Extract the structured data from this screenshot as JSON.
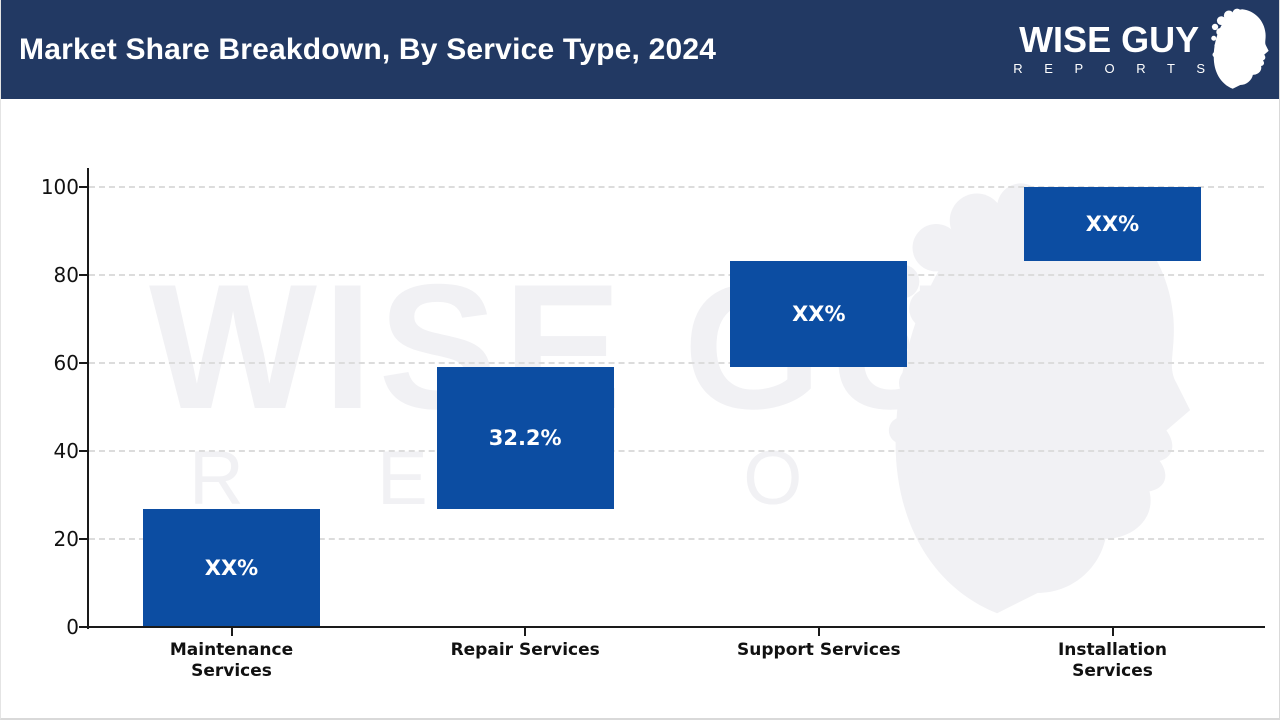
{
  "header": {
    "title": "Market Share Breakdown, By Service Type, 2024",
    "logo": {
      "name": "WISE GUY",
      "subname": "R E P O R T S"
    }
  },
  "watermark": {
    "line1": "WISE GUY",
    "line2": "R E P O R T S"
  },
  "chart_data": {
    "type": "bar",
    "subtype": "floating-waterfall",
    "title": "Market Share Breakdown, By Service Type, 2024",
    "categories": [
      "Maintenance Services",
      "Repair Services",
      "Support Services",
      "Installation Services"
    ],
    "bars": [
      {
        "category": "Maintenance Services",
        "start": 0,
        "end": 26.9,
        "label": "XX%"
      },
      {
        "category": "Repair Services",
        "start": 26.9,
        "end": 59.1,
        "label": "32.2%"
      },
      {
        "category": "Support Services",
        "start": 59.1,
        "end": 83.1,
        "label": "XX%"
      },
      {
        "category": "Installation Services",
        "start": 83.1,
        "end": 100,
        "label": "XX%"
      }
    ],
    "xlabel": "",
    "ylabel": "",
    "ylim": [
      0,
      104
    ],
    "yticks": [
      0,
      20,
      40,
      60,
      80,
      100
    ],
    "grid": {
      "horizontal": true,
      "style": "dashed",
      "color": "#dcdcdc",
      "legend": "none"
    },
    "bar_color": "#0c4da2",
    "bar_label_color": "#ffffff",
    "axis_color": "#1a1a1a",
    "header_color": "#223963"
  }
}
